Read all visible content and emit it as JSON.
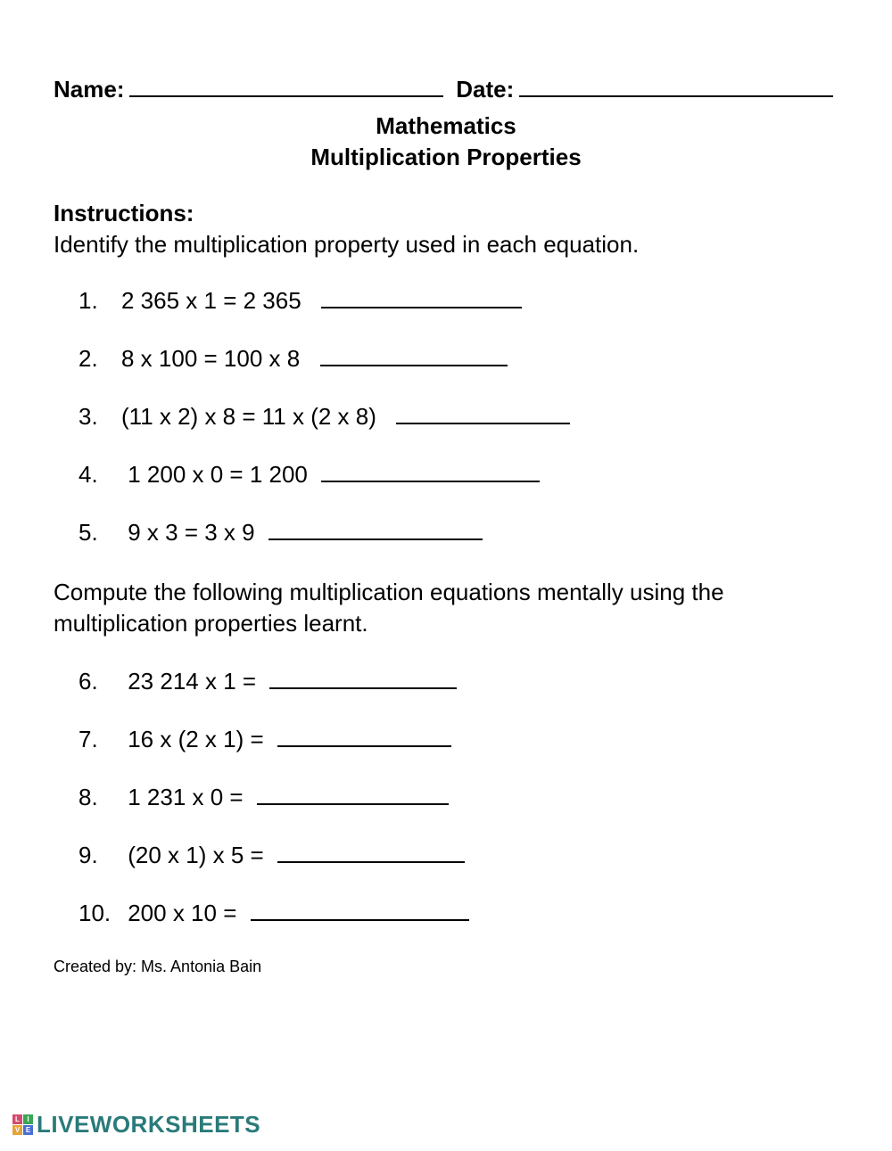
{
  "header": {
    "name_label": "Name:",
    "date_label": "Date:",
    "title_line1": "Mathematics",
    "title_line2": "Multiplication Properties"
  },
  "instructions": {
    "label": "Instructions:",
    "text": "Identify the multiplication property used in each equation."
  },
  "section2_text": "Compute the following multiplication equations mentally using the multiplication properties learnt.",
  "questions": [
    {
      "num": "1.",
      "eq": "2 365 x 1 = 2 365  ",
      "blank_width": 225
    },
    {
      "num": "2.",
      "eq": "8 x 100 = 100 x 8  ",
      "blank_width": 210
    },
    {
      "num": "3.",
      "eq": "(11 x 2) x 8 = 11 x (2 x 8)  ",
      "blank_width": 195
    },
    {
      "num": "4.",
      "eq": " 1 200 x 0 = 1 200 ",
      "blank_width": 245
    },
    {
      "num": "5.",
      "eq": " 9 x 3 = 3 x 9 ",
      "blank_width": 240
    }
  ],
  "questions2": [
    {
      "num": "6.",
      "eq": " 23 214 x 1 = ",
      "blank_width": 210
    },
    {
      "num": "7.",
      "eq": " 16 x (2 x 1) = ",
      "blank_width": 195
    },
    {
      "num": "8.",
      "eq": " 1 231 x 0 = ",
      "blank_width": 215
    },
    {
      "num": "9.",
      "eq": " (20 x 1) x 5 = ",
      "blank_width": 210
    },
    {
      "num": "10.",
      "eq": " 200 x 10 = ",
      "blank_width": 245
    }
  ],
  "footer": {
    "credit": "Created by: Ms. Antonia Bain"
  },
  "logo": {
    "text": "LIVEWORKSHEETS",
    "squares": [
      {
        "char": "L",
        "color": "#d34b6c"
      },
      {
        "char": "I",
        "color": "#3aa655"
      },
      {
        "char": "V",
        "color": "#e8a23a"
      },
      {
        "char": "E",
        "color": "#4a6fd4"
      }
    ],
    "text_color": "#2a7a7a"
  }
}
